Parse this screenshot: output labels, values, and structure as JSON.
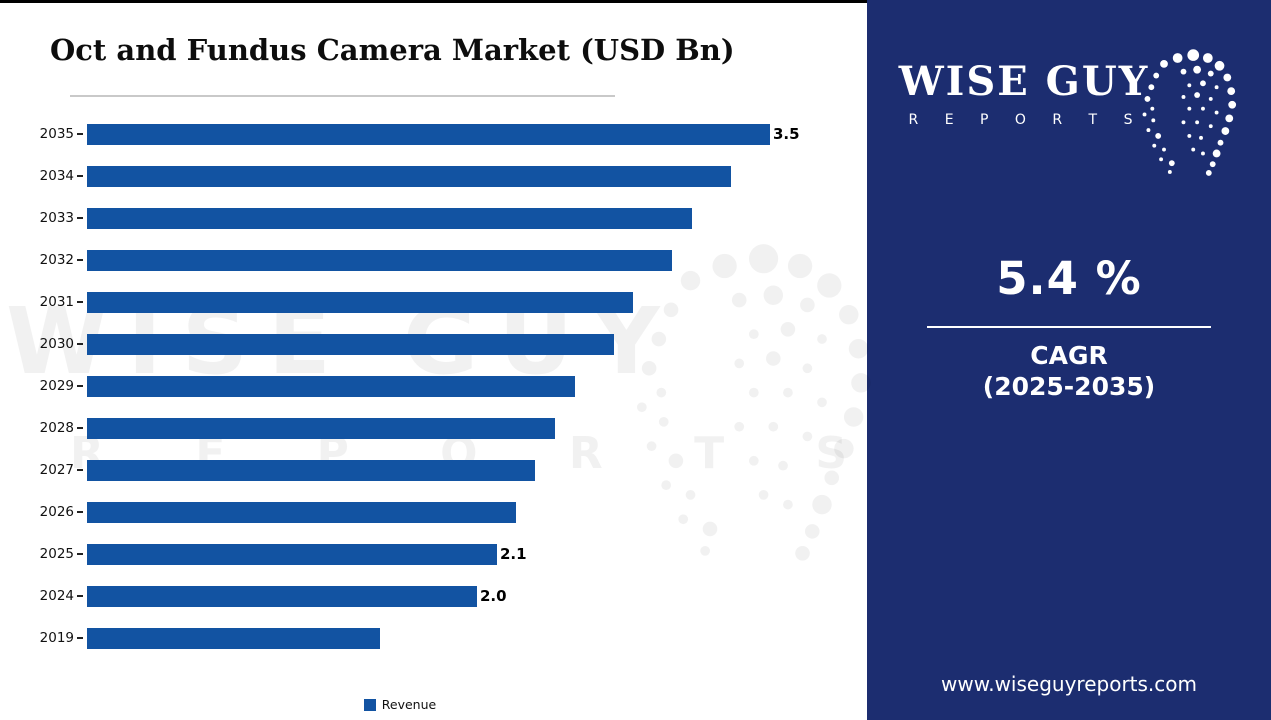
{
  "chart": {
    "title": "Oct and Fundus Camera Market (USD Bn)"
  },
  "legend": {
    "label": "Revenue"
  },
  "watermark": {
    "line1": "WISE GUY",
    "line2": "R E P O R T S",
    "head_icon": "dotted-head-profile"
  },
  "brand": {
    "name_line1": "WISE GUY",
    "name_line2": "R E P O R T S",
    "head_icon": "dotted-head-profile",
    "cagr_value": "5.4 %",
    "cagr_label": "CAGR",
    "cagr_period": "(2025-2035)",
    "website": "www.wiseguyreports.com",
    "panel_color": "#1c2d70"
  },
  "chart_data": {
    "type": "bar",
    "orientation": "horizontal",
    "title": "Oct and Fundus Camera Market (USD Bn)",
    "series_name": "Revenue",
    "categories": [
      "2035",
      "2034",
      "2033",
      "2032",
      "2031",
      "2030",
      "2029",
      "2028",
      "2027",
      "2026",
      "2025",
      "2024",
      "2019"
    ],
    "values": [
      3.5,
      3.3,
      3.1,
      3.0,
      2.8,
      2.7,
      2.5,
      2.4,
      2.3,
      2.2,
      2.1,
      2.0,
      1.5
    ],
    "data_labels": [
      "3.5",
      "",
      "",
      "",
      "",
      "",
      "",
      "",
      "",
      "",
      "2.1",
      "2.0",
      ""
    ],
    "bar_color": "#1253a2",
    "xlabel": "",
    "ylabel": "",
    "xlim": [
      0,
      3.8
    ],
    "grid": false,
    "legend_position": "bottom"
  }
}
